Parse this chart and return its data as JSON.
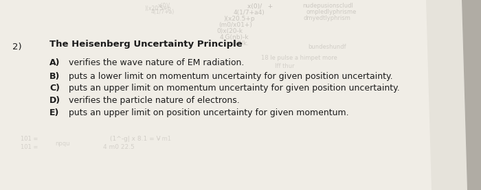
{
  "background_color": "#d8d8d8",
  "page_color": "#f2f0eb",
  "page_right_color": "#c8c4bc",
  "text_color": "#1a1a1a",
  "ghost_color": "#b8b4aa",
  "question_number": "2)",
  "question_text": "The Heisenberg Uncertainty Principle",
  "options": [
    {
      "label": "A)",
      "text": "verifies the wave nature of EM radiation."
    },
    {
      "label": "B)",
      "text": "puts a lower limit on momentum uncertainty for given position uncertainty."
    },
    {
      "label": "C)",
      "text": "puts an upper limit on momentum uncertainty for given position uncertainty."
    },
    {
      "label": "D)",
      "text": "verifies the particle nature of electrons."
    },
    {
      "label": "E)",
      "text": "puts an upper limit on position uncertainty for given momentum."
    }
  ],
  "font_size_question": 9.5,
  "font_size_options": 9.0,
  "text_color_main": "#1c1c1c"
}
